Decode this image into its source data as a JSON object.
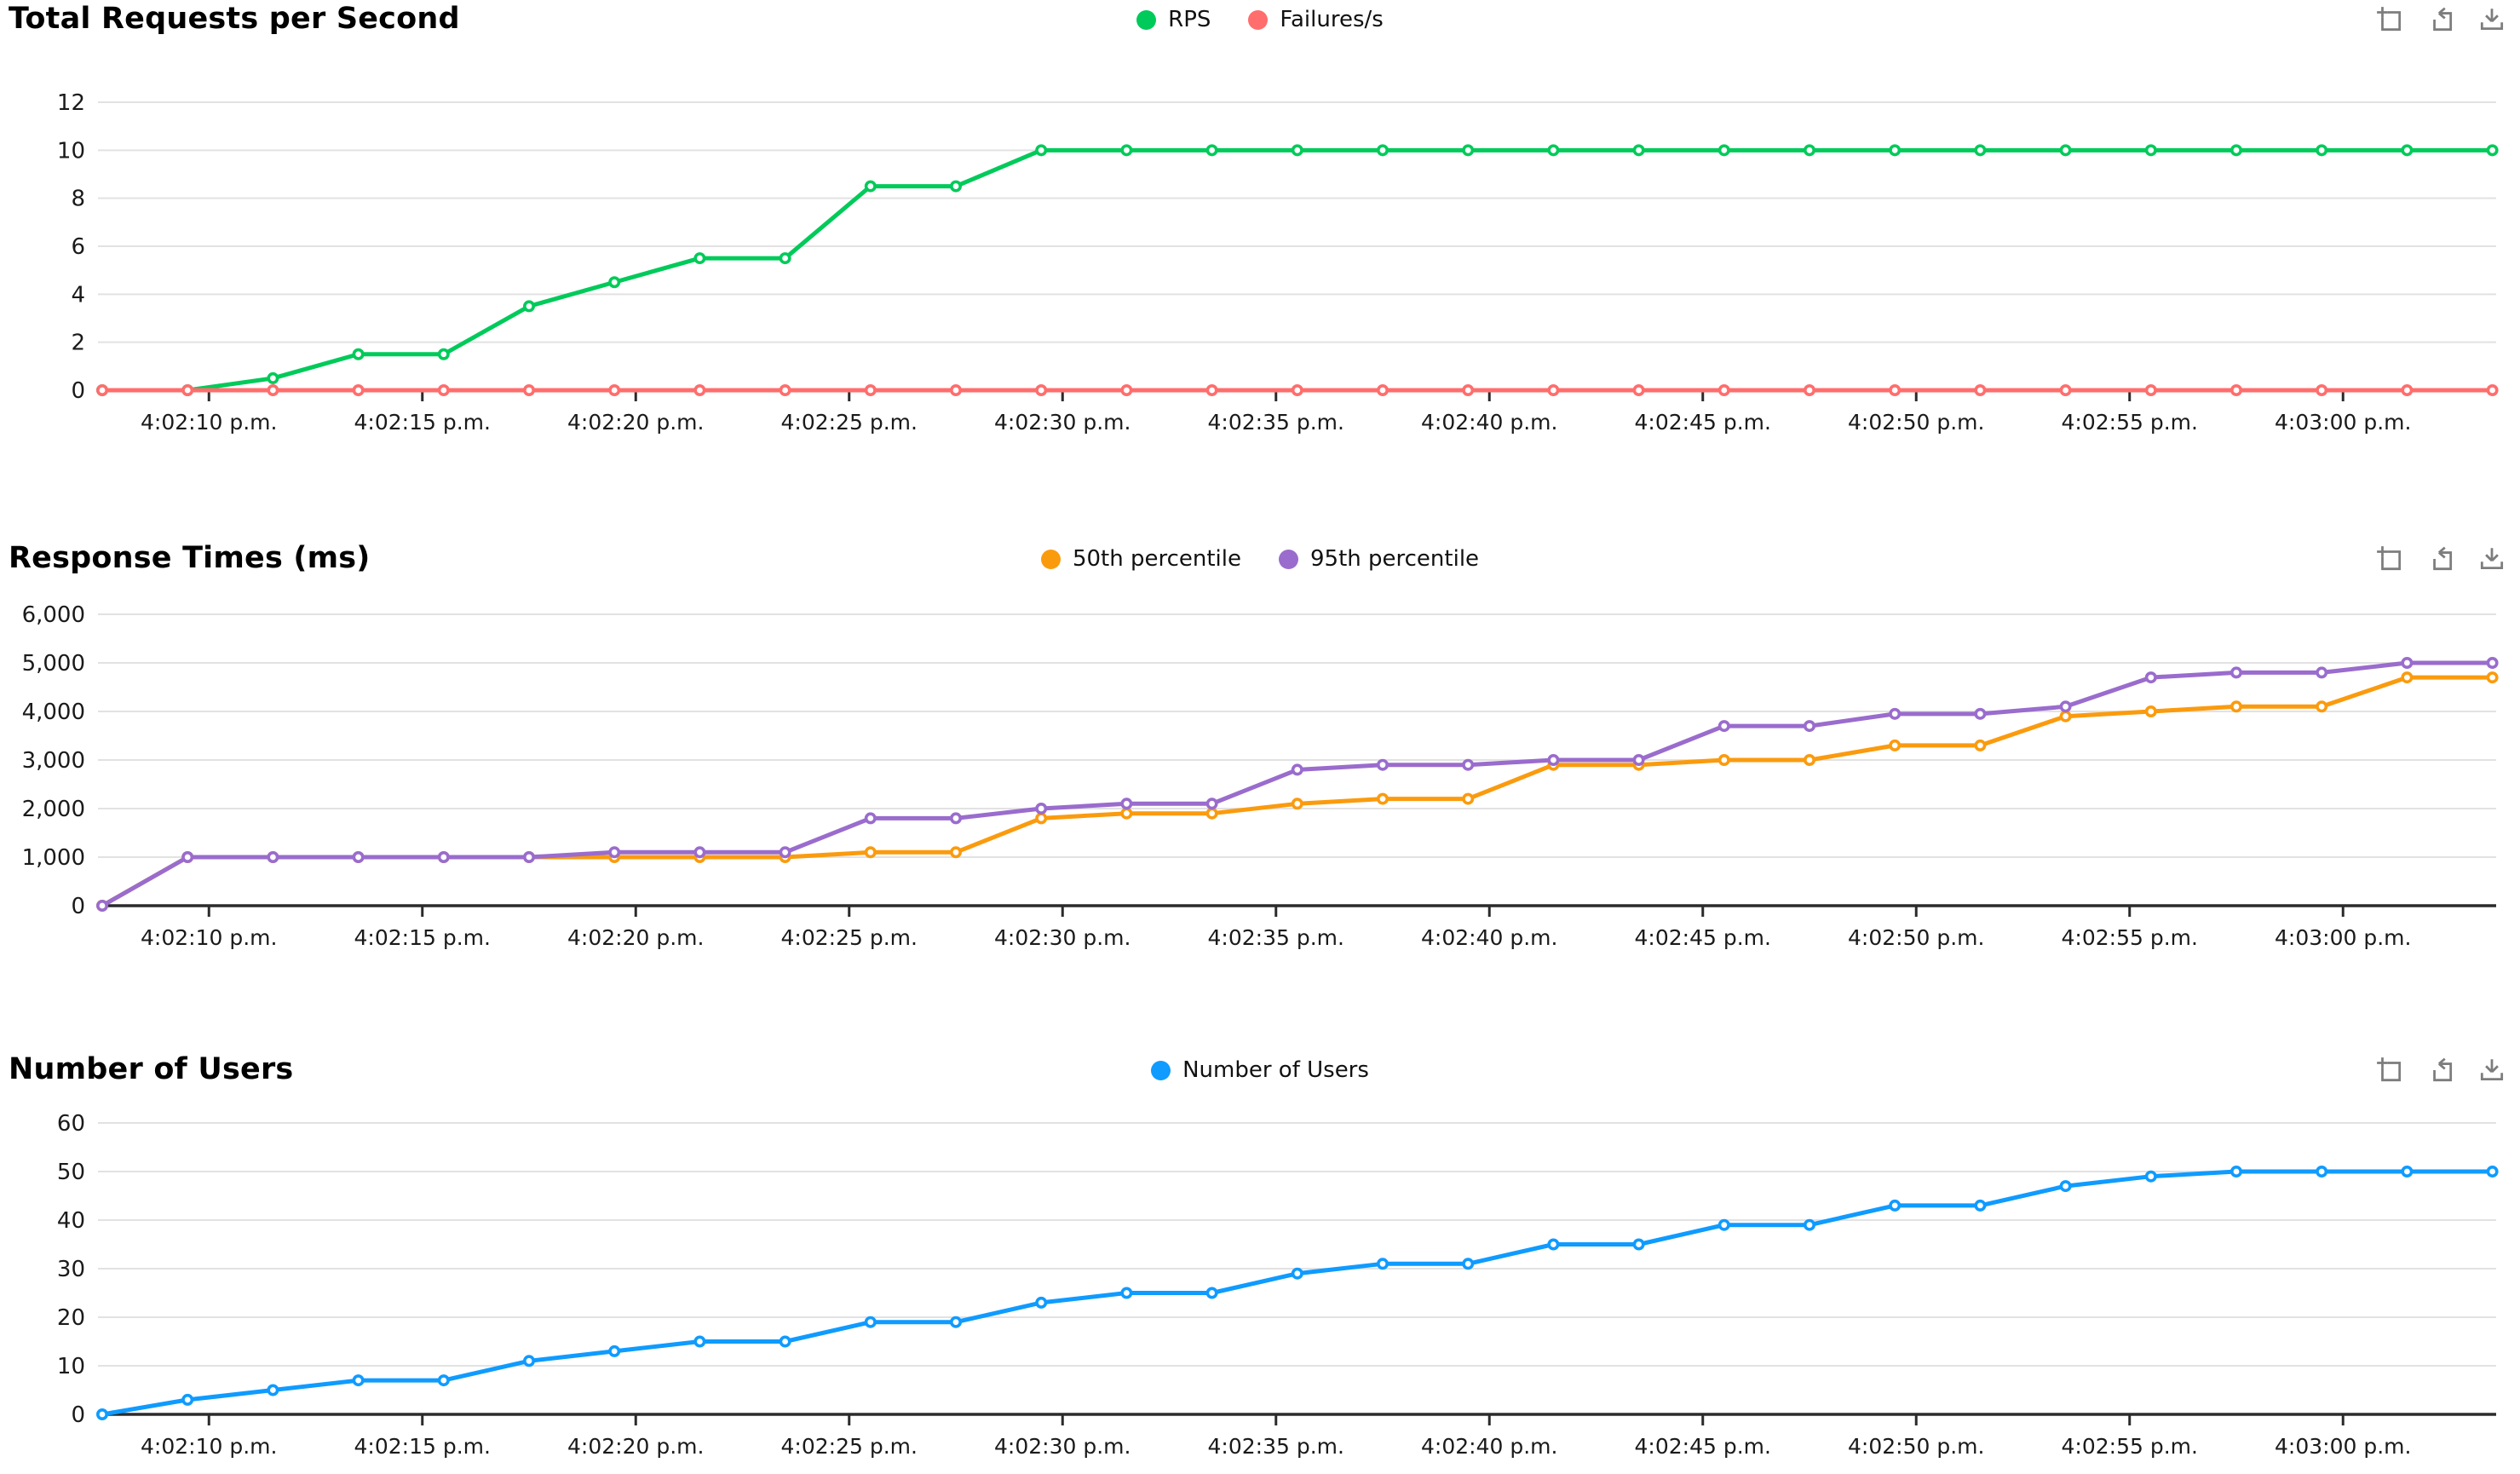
{
  "page": {
    "background": "#ffffff",
    "text_color": "#1a1a1a"
  },
  "axis_style": {
    "grid_color": "#e2e2e2",
    "axis_line_color": "#2b2b2b",
    "tick_color": "#2b2b2b"
  },
  "toolbar": {
    "color": "#7d7d7d",
    "buttons": [
      {
        "name": "zoom-in",
        "icon": "box-with-plus"
      },
      {
        "name": "reset-axes",
        "icon": "box-with-arrow"
      },
      {
        "name": "download-image",
        "icon": "download-arrow"
      }
    ]
  },
  "chart_data": [
    {
      "type": "line",
      "title": "Total Requests per Second",
      "legend_position": "top-center",
      "grid": "horizontal",
      "x_seconds": [
        7.5,
        9.5,
        11.5,
        13.5,
        15.5,
        17.5,
        19.5,
        21.5,
        23.5,
        25.5,
        27.5,
        29.5,
        31.5,
        33.5,
        35.5,
        37.5,
        39.5,
        41.5,
        43.5,
        45.5,
        47.5,
        49.5,
        51.5,
        53.5,
        55.5,
        57.5,
        59.5,
        61.5,
        63.5
      ],
      "x_tick_seconds": [
        10,
        15,
        20,
        25,
        30,
        35,
        40,
        45,
        50,
        55,
        60
      ],
      "x_tick_labels": [
        "4:02:10 p.m.",
        "4:02:15 p.m.",
        "4:02:20 p.m.",
        "4:02:25 p.m.",
        "4:02:30 p.m.",
        "4:02:35 p.m.",
        "4:02:40 p.m.",
        "4:02:45 p.m.",
        "4:02:50 p.m.",
        "4:02:55 p.m.",
        "4:03:00 p.m."
      ],
      "y_ticks": [
        0,
        2,
        4,
        6,
        8,
        10,
        12
      ],
      "y_tick_labels": [
        "0",
        "2",
        "4",
        "6",
        "8",
        "10",
        "12"
      ],
      "ylim": [
        0,
        12
      ],
      "series": [
        {
          "name": "RPS",
          "color": "#00ca5a",
          "values": [
            0,
            0,
            0.5,
            1.5,
            1.5,
            3.5,
            4.5,
            5.5,
            5.5,
            8.5,
            8.5,
            10,
            10,
            10,
            10,
            10,
            10,
            10,
            10,
            10,
            10,
            10,
            10,
            10,
            10,
            10,
            10,
            10,
            10
          ]
        },
        {
          "name": "Failures/s",
          "color": "#ff6d6d",
          "values": [
            0,
            0,
            0,
            0,
            0,
            0,
            0,
            0,
            0,
            0,
            0,
            0,
            0,
            0,
            0,
            0,
            0,
            0,
            0,
            0,
            0,
            0,
            0,
            0,
            0,
            0,
            0,
            0,
            0
          ]
        }
      ]
    },
    {
      "type": "line",
      "title": "Response Times (ms)",
      "legend_position": "top-center",
      "grid": "horizontal",
      "x_seconds": [
        7.5,
        9.5,
        11.5,
        13.5,
        15.5,
        17.5,
        19.5,
        21.5,
        23.5,
        25.5,
        27.5,
        29.5,
        31.5,
        33.5,
        35.5,
        37.5,
        39.5,
        41.5,
        43.5,
        45.5,
        47.5,
        49.5,
        51.5,
        53.5,
        55.5,
        57.5,
        59.5,
        61.5,
        63.5
      ],
      "x_tick_seconds": [
        10,
        15,
        20,
        25,
        30,
        35,
        40,
        45,
        50,
        55,
        60
      ],
      "x_tick_labels": [
        "4:02:10 p.m.",
        "4:02:15 p.m.",
        "4:02:20 p.m.",
        "4:02:25 p.m.",
        "4:02:30 p.m.",
        "4:02:35 p.m.",
        "4:02:40 p.m.",
        "4:02:45 p.m.",
        "4:02:50 p.m.",
        "4:02:55 p.m.",
        "4:03:00 p.m."
      ],
      "y_ticks": [
        0,
        1000,
        2000,
        3000,
        4000,
        5000,
        6000
      ],
      "y_tick_labels": [
        "0",
        "1,000",
        "2,000",
        "3,000",
        "4,000",
        "5,000",
        "6,000"
      ],
      "ylim": [
        0,
        6000
      ],
      "series": [
        {
          "name": "50th percentile",
          "color": "#fa9b0e",
          "values": [
            0,
            1000,
            1000,
            1000,
            1000,
            1000,
            1000,
            1000,
            1000,
            1100,
            1100,
            1800,
            1900,
            1900,
            2100,
            2200,
            2200,
            2900,
            2900,
            3000,
            3000,
            3300,
            3300,
            3900,
            4000,
            4100,
            4100,
            4700,
            4700
          ]
        },
        {
          "name": "95th percentile",
          "color": "#9a6ccd",
          "values": [
            0,
            1000,
            1000,
            1000,
            1000,
            1000,
            1100,
            1100,
            1100,
            1800,
            1800,
            2000,
            2100,
            2100,
            2800,
            2900,
            2900,
            3000,
            3000,
            3700,
            3700,
            3950,
            3950,
            4100,
            4700,
            4800,
            4800,
            5000,
            5000
          ]
        }
      ]
    },
    {
      "type": "line",
      "title": "Number of Users",
      "legend_position": "top-center",
      "grid": "horizontal",
      "x_seconds": [
        7.5,
        9.5,
        11.5,
        13.5,
        15.5,
        17.5,
        19.5,
        21.5,
        23.5,
        25.5,
        27.5,
        29.5,
        31.5,
        33.5,
        35.5,
        37.5,
        39.5,
        41.5,
        43.5,
        45.5,
        47.5,
        49.5,
        51.5,
        53.5,
        55.5,
        57.5,
        59.5,
        61.5,
        63.5
      ],
      "x_tick_seconds": [
        10,
        15,
        20,
        25,
        30,
        35,
        40,
        45,
        50,
        55,
        60
      ],
      "x_tick_labels": [
        "4:02:10 p.m.",
        "4:02:15 p.m.",
        "4:02:20 p.m.",
        "4:02:25 p.m.",
        "4:02:30 p.m.",
        "4:02:35 p.m.",
        "4:02:40 p.m.",
        "4:02:45 p.m.",
        "4:02:50 p.m.",
        "4:02:55 p.m.",
        "4:03:00 p.m."
      ],
      "y_ticks": [
        0,
        10,
        20,
        30,
        40,
        50,
        60
      ],
      "y_tick_labels": [
        "0",
        "10",
        "20",
        "30",
        "40",
        "50",
        "60"
      ],
      "ylim": [
        0,
        60
      ],
      "series": [
        {
          "name": "Number of Users",
          "color": "#0f9bff",
          "values": [
            0,
            3,
            5,
            7,
            7,
            11,
            13,
            15,
            15,
            19,
            19,
            23,
            25,
            25,
            29,
            31,
            31,
            35,
            35,
            39,
            39,
            43,
            43,
            47,
            49,
            50,
            50,
            50,
            50
          ]
        }
      ]
    }
  ]
}
